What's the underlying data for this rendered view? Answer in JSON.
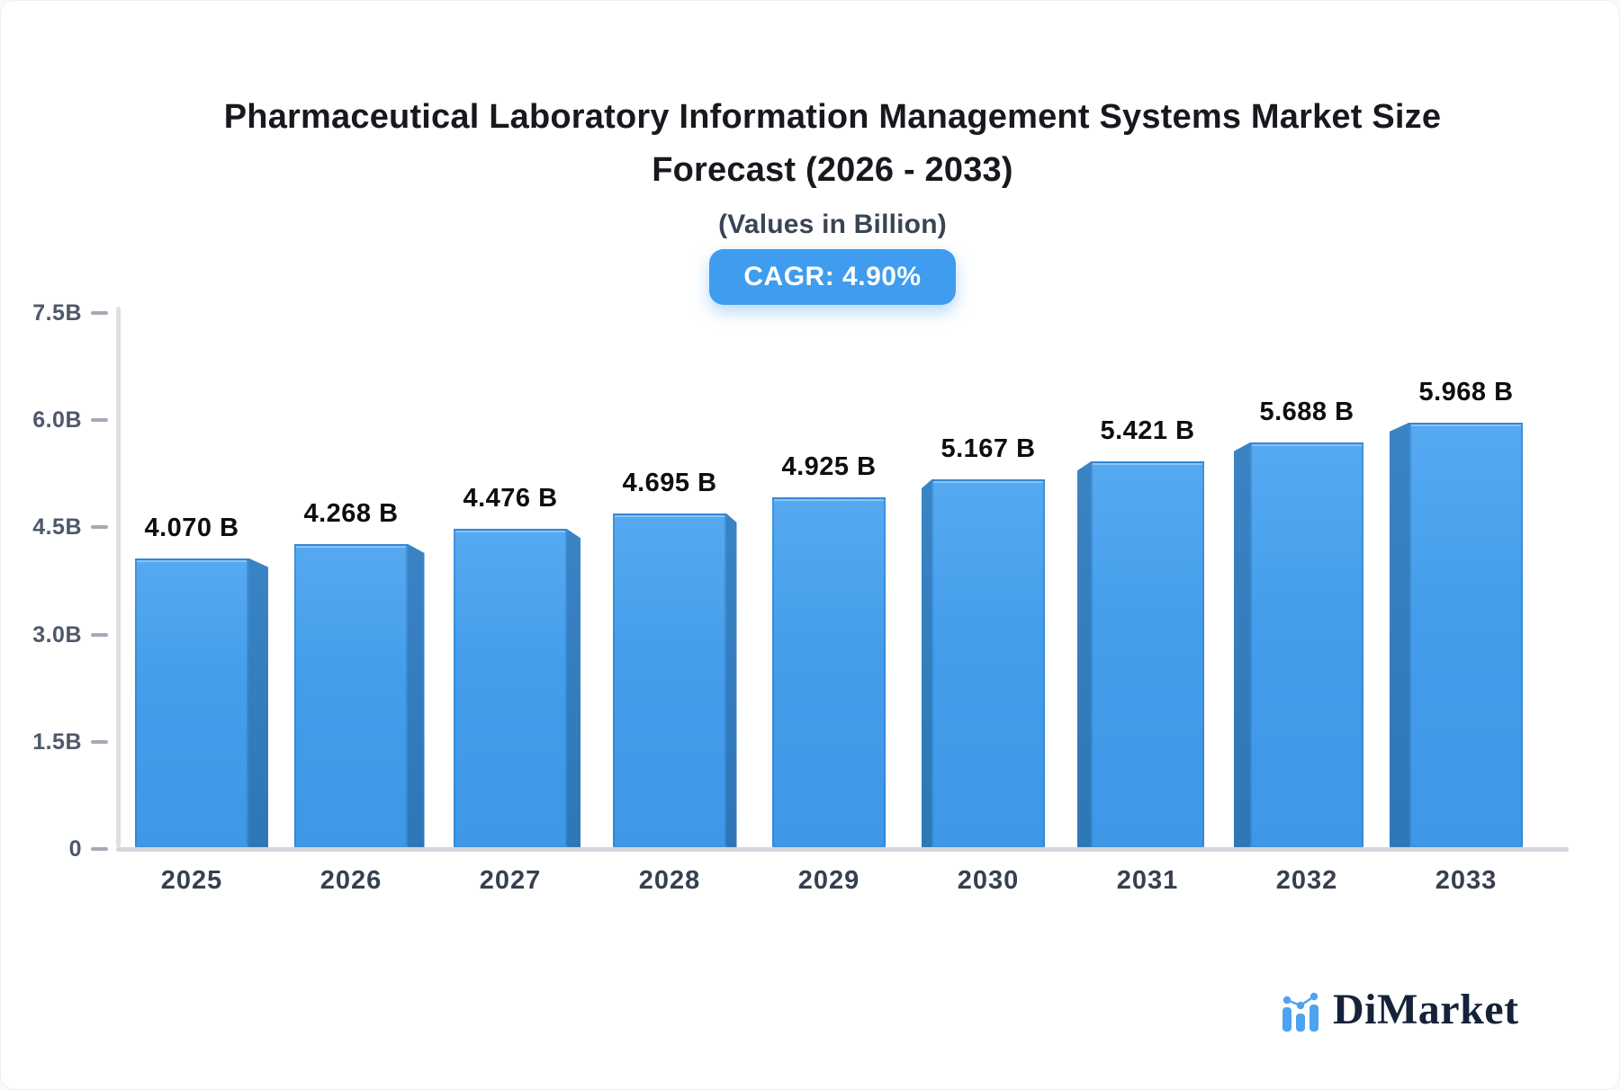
{
  "header": {
    "title_line1": "Pharmaceutical Laboratory Information Management Systems Market Size",
    "title_line2": "Forecast (2026 - 2033)",
    "subtitle": "(Values in Billion)",
    "cagr_badge": "CAGR: 4.90%"
  },
  "chart_data": {
    "type": "bar",
    "title": "Pharmaceutical Laboratory Information Management Systems Market Size Forecast (2026 - 2033)",
    "subtitle": "(Values in Billion)",
    "cagr_percent": 4.9,
    "unit": "Billion",
    "categories": [
      "2025",
      "2026",
      "2027",
      "2028",
      "2029",
      "2030",
      "2031",
      "2032",
      "2033"
    ],
    "values": [
      4.07,
      4.268,
      4.476,
      4.695,
      4.925,
      5.167,
      5.421,
      5.688,
      5.968
    ],
    "value_labels": [
      "4.070 B",
      "4.268 B",
      "4.476 B",
      "4.695 B",
      "4.925 B",
      "5.167 B",
      "5.421 B",
      "5.688 B",
      "5.968 B"
    ],
    "yticks": [
      {
        "label": "7.5B",
        "value": 7.5
      },
      {
        "label": "6.0B",
        "value": 6.0
      },
      {
        "label": "4.5B",
        "value": 4.5
      },
      {
        "label": "3.0B",
        "value": 3.0
      },
      {
        "label": "1.5B",
        "value": 1.5
      },
      {
        "label": "0",
        "value": 0
      }
    ],
    "ylim": [
      0,
      7.5
    ],
    "grid": false,
    "legend_position": "none",
    "bar_color": "#449dea",
    "bar_side_color": "#2e79ba",
    "style": "3d-perspective-bars"
  },
  "branding": {
    "logo_text": "DiMarket",
    "logo_icon": "bar-line-chart-icon",
    "logo_color": "#4da2f2",
    "logo_text_color": "#152238"
  },
  "colors": {
    "badge_bg": "#3f9cee",
    "badge_text": "#ffffff",
    "axis": "#d3d7dd",
    "tick": "#a3abb8",
    "y_label": "#4e5869",
    "x_label": "#37404f",
    "value_label": "#0d0e10",
    "title": "#17191e",
    "subtitle": "#3a4454",
    "background": "#ffffff"
  }
}
